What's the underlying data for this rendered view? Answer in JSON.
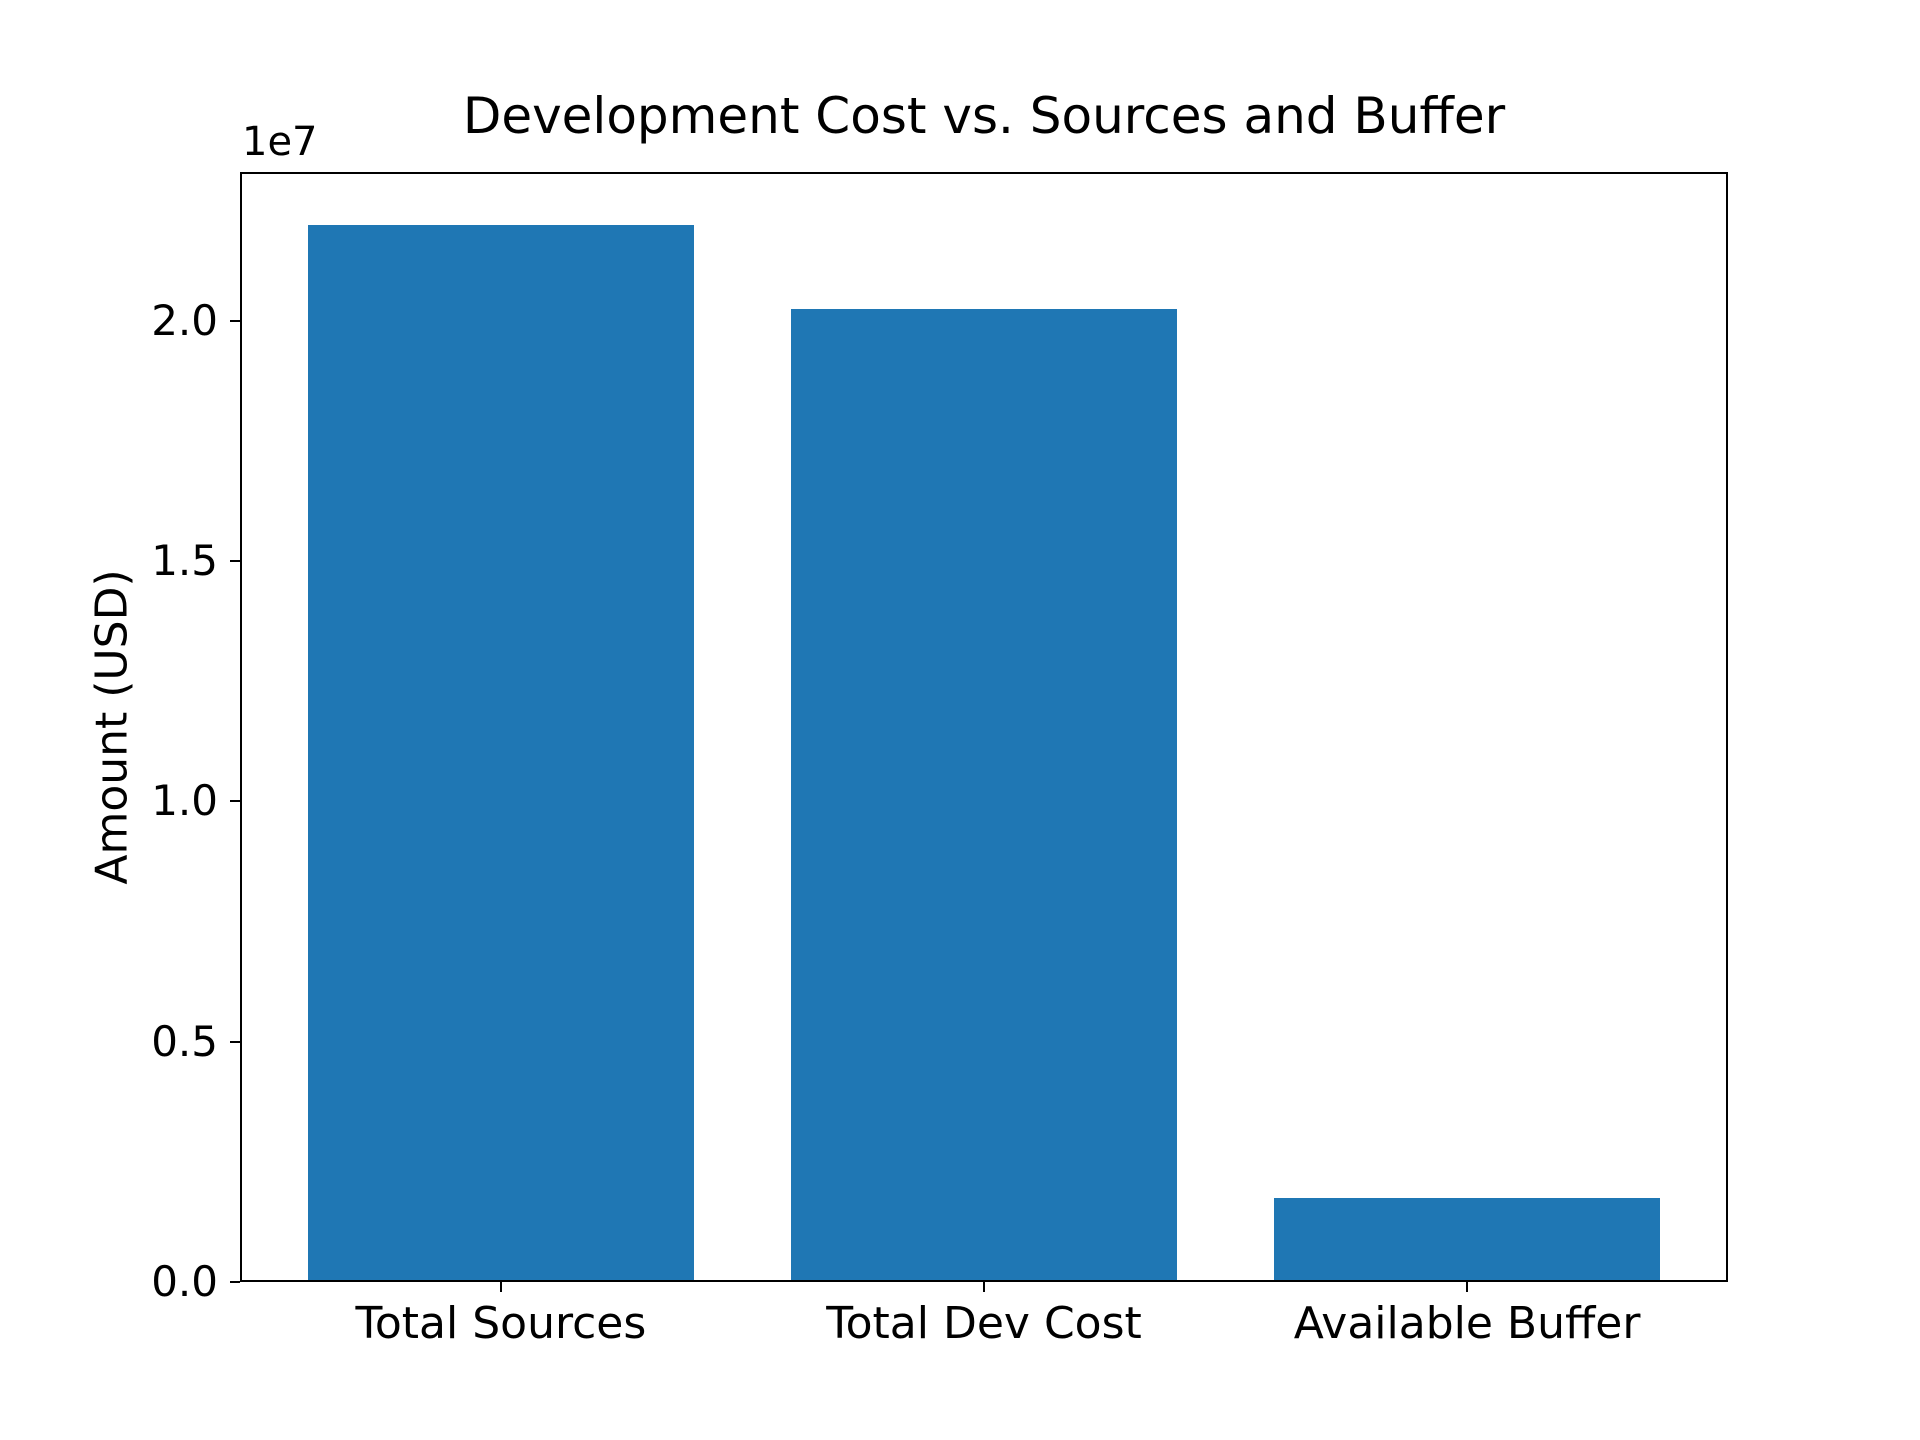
{
  "chart_data": {
    "type": "bar",
    "title": "Development Cost vs. Sources and Buffer",
    "categories": [
      "Total Sources",
      "Total Dev Cost",
      "Available Buffer"
    ],
    "values": [
      22000000,
      20250000,
      1750000
    ],
    "xlabel": "",
    "ylabel": "Amount (USD)",
    "ylim": [
      0,
      23100000
    ],
    "yticks": [
      0,
      5000000,
      10000000,
      15000000,
      20000000
    ],
    "ytick_labels": [
      "0.0",
      "0.5",
      "1.0",
      "1.5",
      "2.0"
    ],
    "offset_label": "1e7",
    "bar_color": "#1f77b4",
    "grid": false,
    "legend": null,
    "background_color": "#ffffff",
    "spine_color": "#000000"
  }
}
